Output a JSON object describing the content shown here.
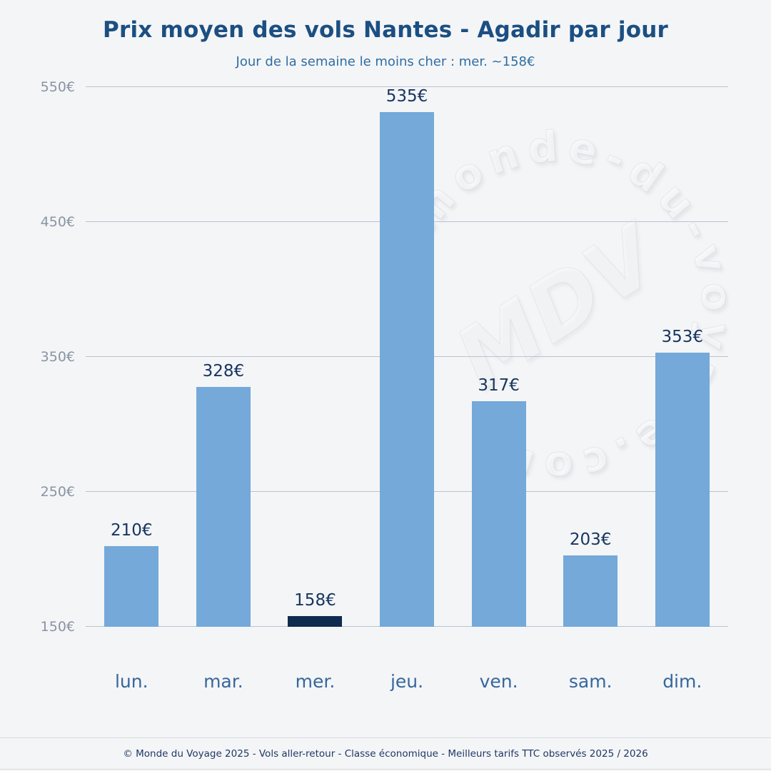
{
  "header": {
    "title": "Prix moyen des vols Nantes - Agadir par jour",
    "subtitle": "Jour de la semaine le moins cher : mer. ~158€"
  },
  "chart_data": {
    "type": "bar",
    "categories": [
      "lun.",
      "mar.",
      "mer.",
      "jeu.",
      "ven.",
      "sam.",
      "dim."
    ],
    "values": [
      210,
      328,
      158,
      535,
      317,
      203,
      353
    ],
    "value_labels": [
      "210€",
      "328€",
      "158€",
      "535€",
      "317€",
      "203€",
      "353€"
    ],
    "highlight_index": 2,
    "title": "Prix moyen des vols Nantes - Agadir par jour",
    "xlabel": "",
    "ylabel": "",
    "ylim": [
      150,
      550
    ],
    "yticks": [
      150,
      250,
      350,
      450,
      550
    ],
    "ytick_labels": [
      "150€",
      "250€",
      "350€",
      "450€",
      "550€"
    ],
    "grid": true,
    "legend": "none",
    "bar_color": "#74a9d9",
    "highlight_color": "#0f2b4d"
  },
  "watermark": {
    "url_text": "www.monde-du-voyage.com",
    "initials": "MDV"
  },
  "footer": {
    "text": "© Monde du Voyage 2025 - Vols aller-retour - Classe économique - Meilleurs tarifs TTC observés 2025 / 2026"
  }
}
